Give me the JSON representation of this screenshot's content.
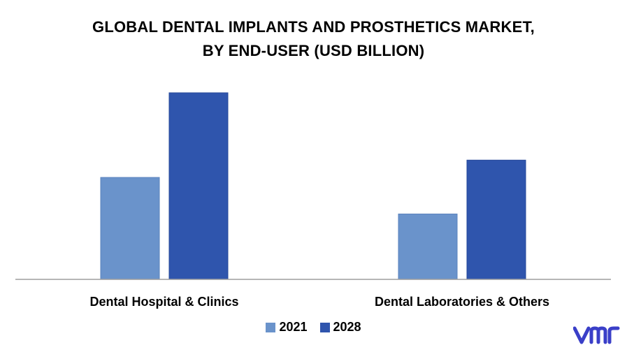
{
  "colors": {
    "series_2021": "#6a93cb",
    "series_2028": "#2f55ad",
    "axis": "#9e9e9e",
    "logo": "#3a3fc8"
  },
  "logo": {
    "text": "vmr"
  },
  "chart_data": {
    "type": "bar",
    "title_lines": [
      "GLOBAL DENTAL IMPLANTS AND PROSTHETICS MARKET,",
      "BY END-USER (USD BILLION)"
    ],
    "categories": [
      "Dental Hospital & Clinics",
      "Dental Laboratories & Others"
    ],
    "series": [
      {
        "name": "2021",
        "values": [
          5.3,
          3.4
        ]
      },
      {
        "name": "2028",
        "values": [
          9.7,
          6.2
        ]
      }
    ],
    "xlabel": "",
    "ylabel": "",
    "ylim": [
      0,
      10
    ],
    "grid": false,
    "legend_position": "bottom"
  }
}
